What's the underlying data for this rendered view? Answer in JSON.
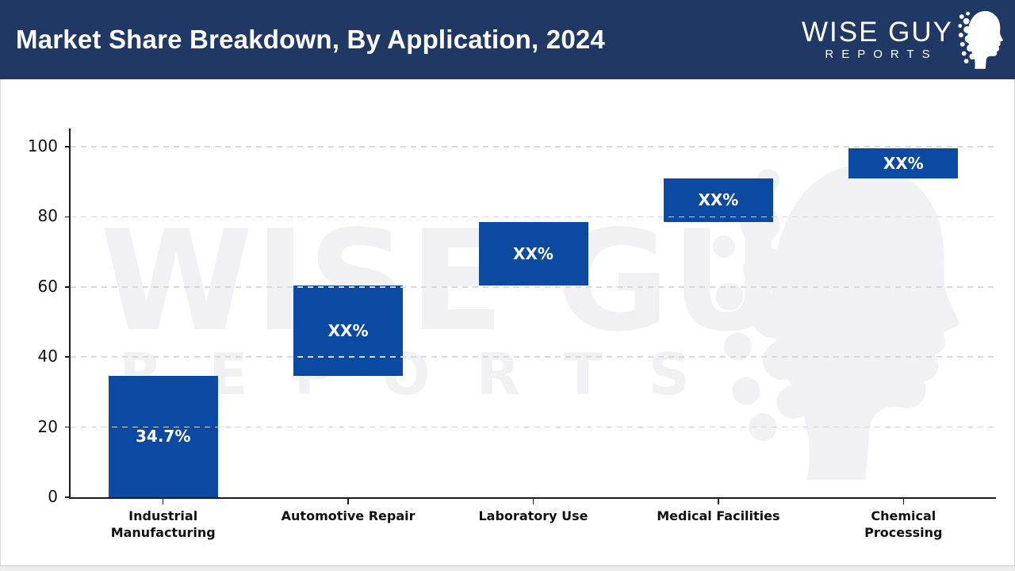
{
  "header": {
    "title": "Market Share Breakdown, By Application, 2024",
    "logo": {
      "line1": "WISE GUY",
      "line2": "REPORTS"
    }
  },
  "watermark": {
    "line1": "WISE GUY",
    "line2": "REPORTS"
  },
  "theme": {
    "header_bg": "#1f3864",
    "bar_color": "#0b4aa2",
    "bar_label_color": "#ffffff",
    "axis_color": "#1a1a1a",
    "gridline_color": "#d9d9d9",
    "watermark_color": "#f1f1f4"
  },
  "chart_data": {
    "type": "bar",
    "subtype": "waterfall",
    "title": "Market Share Breakdown, By Application, 2024",
    "categories": [
      [
        "Industrial",
        "Manufacturing"
      ],
      [
        "Automotive Repair"
      ],
      [
        "Laboratory Use"
      ],
      [
        "Medical Facilities"
      ],
      [
        "Chemical",
        "Processing"
      ]
    ],
    "segments": [
      {
        "start": 0,
        "end": 34.7,
        "label": "34.7%"
      },
      {
        "start": 34.7,
        "end": 60.5,
        "label": "XX%"
      },
      {
        "start": 60.5,
        "end": 78.5,
        "label": "XX%"
      },
      {
        "start": 78.5,
        "end": 91.0,
        "label": "XX%"
      },
      {
        "start": 91.0,
        "end": 99.5,
        "label": "XX%"
      }
    ],
    "y_ticks": [
      0,
      20,
      40,
      60,
      80,
      100
    ],
    "ylim": [
      0,
      105
    ],
    "xlabel": "",
    "ylabel": "",
    "grid": "horizontal-dashed",
    "legend": null
  }
}
